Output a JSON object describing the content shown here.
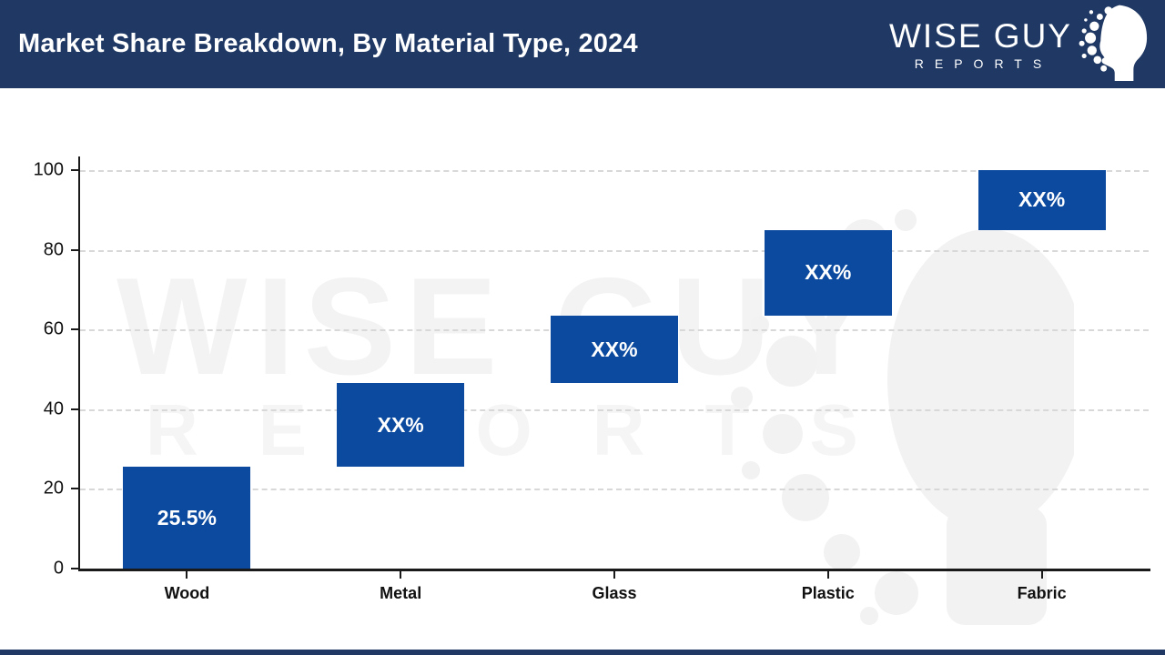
{
  "header": {
    "title": "Market Share Breakdown, By Material Type, 2024",
    "logo": {
      "line1": "WISE GUY",
      "line2": "REPORTS"
    },
    "bg_color": "#1f3864"
  },
  "watermark": {
    "line1": "WISE GUY",
    "line2": "REPORTS"
  },
  "chart_data": {
    "type": "bar",
    "subtype": "waterfall",
    "title": "Market Share Breakdown, By Material Type, 2024",
    "categories": [
      "Wood",
      "Metal",
      "Glass",
      "Plastic",
      "Fabric"
    ],
    "bars": [
      {
        "category": "Wood",
        "start": 0,
        "end": 25.5,
        "label": "25.5%"
      },
      {
        "category": "Metal",
        "start": 25.5,
        "end": 46.5,
        "label": "XX%"
      },
      {
        "category": "Glass",
        "start": 46.5,
        "end": 63.5,
        "label": "XX%"
      },
      {
        "category": "Plastic",
        "start": 63.5,
        "end": 85,
        "label": "XX%"
      },
      {
        "category": "Fabric",
        "start": 85,
        "end": 100,
        "label": "XX%"
      }
    ],
    "xlabel": "",
    "ylabel": "",
    "ylim": [
      0,
      100
    ],
    "yticks": [
      0,
      20,
      40,
      60,
      80,
      100
    ],
    "grid": "horizontal-dashed",
    "legend": "none",
    "bar_color": "#0b4a9f",
    "bar_label_color": "#ffffff",
    "axis_color": "#1a1a1a",
    "gridline_color": "#d8d8d8"
  },
  "footer": {
    "bg_color": "#1f3864"
  }
}
